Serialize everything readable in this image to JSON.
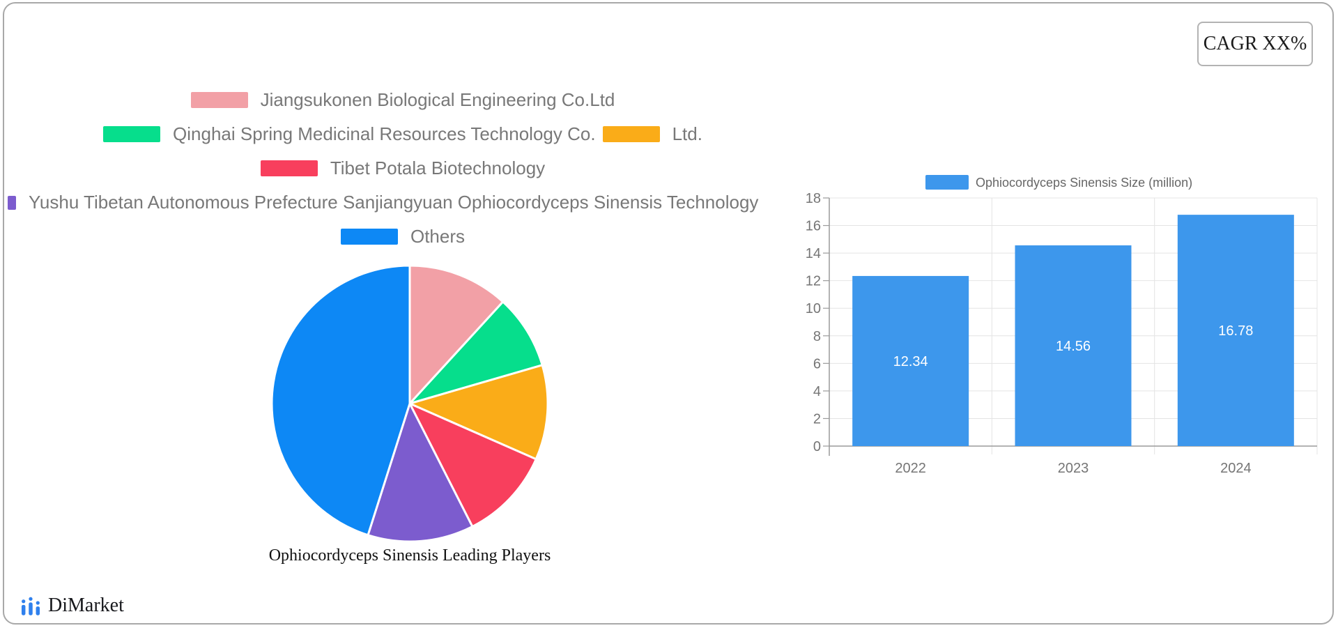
{
  "cagr_badge": {
    "label": "CAGR XX%"
  },
  "brand": {
    "name": "DiMarket",
    "icon": "bar-chart-logo-icon",
    "icon_color": "#2F80ED"
  },
  "colors": {
    "bar_fill": "#3D97EC",
    "legend_text": "#787878",
    "axis_text": "#757575",
    "grid_line": "#e4e4e4",
    "axis_line": "#9a9a9a",
    "value_label": "#ffffff"
  },
  "chart_data": [
    {
      "type": "pie",
      "title": "Ophiocordyceps Sinensis Leading Players",
      "series": [
        {
          "name": "Jiangsukonen Biological Engineering Co.Ltd",
          "value_pct": 11.8,
          "color": "#F2A0A6"
        },
        {
          "name": "Qinghai Spring Medicinal Resources Technology Co.",
          "value_pct": 8.7,
          "color": "#06DE8C"
        },
        {
          "name": "Ltd.",
          "value_pct": 11.1,
          "color": "#FAAC18"
        },
        {
          "name": "Tibet Potala Biotechnology",
          "value_pct": 10.9,
          "color": "#F83F5D"
        },
        {
          "name": "Yushu Tibetan Autonomous Prefecture Sanjiangyuan Ophiocordyceps Sinensis Technology",
          "value_pct": 12.4,
          "color": "#7C5CCE"
        },
        {
          "name": "Others",
          "value_pct": 45.1,
          "color": "#0D88F5"
        }
      ],
      "legend_rows": [
        [
          0
        ],
        [
          1,
          2
        ],
        [
          3
        ],
        [
          4
        ],
        [
          5
        ]
      ],
      "legend_position": "top"
    },
    {
      "type": "bar",
      "series_name": "Ophiocordyceps Sinensis Size (million)",
      "categories": [
        "2022",
        "2023",
        "2024"
      ],
      "values": [
        12.34,
        14.56,
        16.78
      ],
      "ylim": [
        0,
        18
      ],
      "ytick_step": 2,
      "grid": true,
      "legend_position": "top"
    }
  ]
}
